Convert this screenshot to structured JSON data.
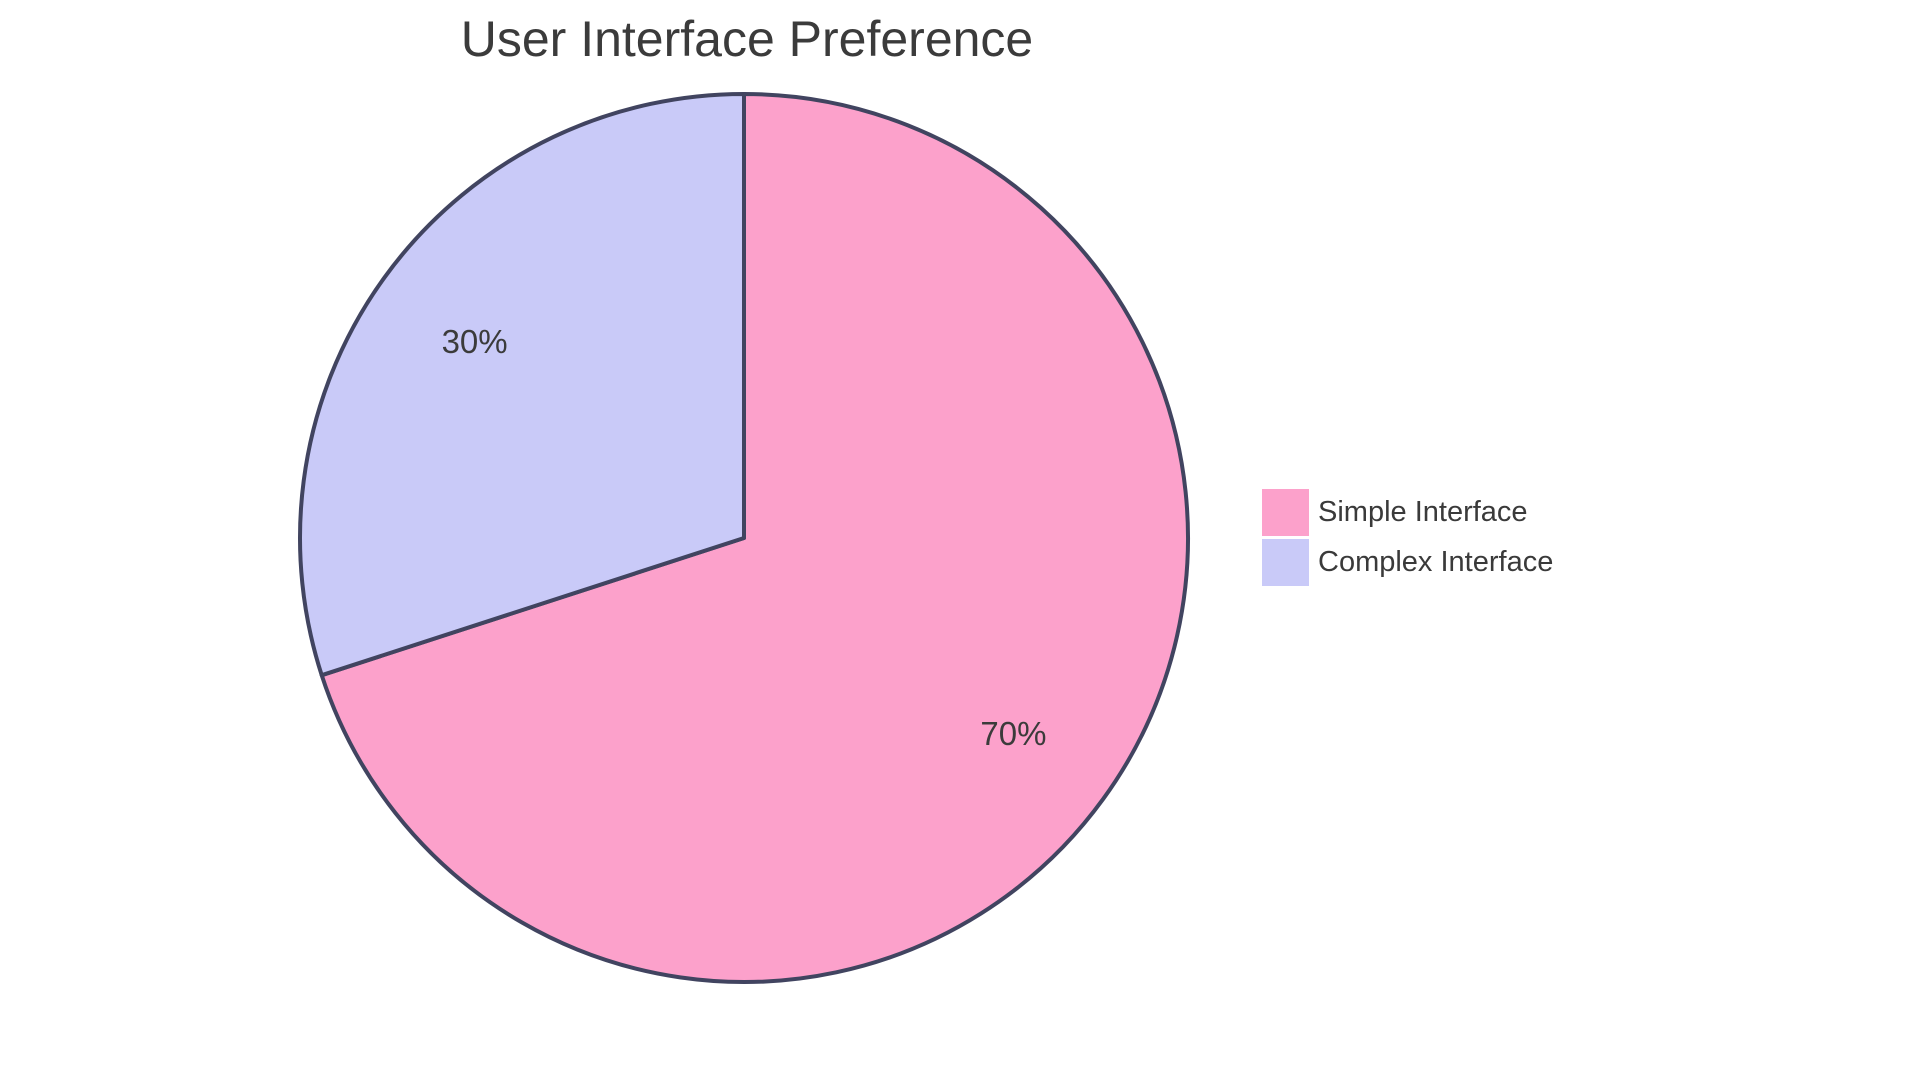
{
  "chart_data": {
    "type": "pie",
    "title": "User Interface Preference",
    "labels": [
      "Simple Interface",
      "Complex Interface"
    ],
    "values": [
      70,
      30
    ],
    "percent_labels": [
      "70%",
      "30%"
    ],
    "colors": [
      "#FCA1CB",
      "#C9CAF8"
    ],
    "border_color": "#414460",
    "text_color": "#3b3b3b",
    "start_angle": "top",
    "direction": "clockwise",
    "legend_position": "right",
    "background": "#ffffff"
  },
  "legend": {
    "items": [
      {
        "label": "Simple Interface",
        "color": "#FCA1CB"
      },
      {
        "label": "Complex Interface",
        "color": "#C9CAF8"
      }
    ]
  }
}
